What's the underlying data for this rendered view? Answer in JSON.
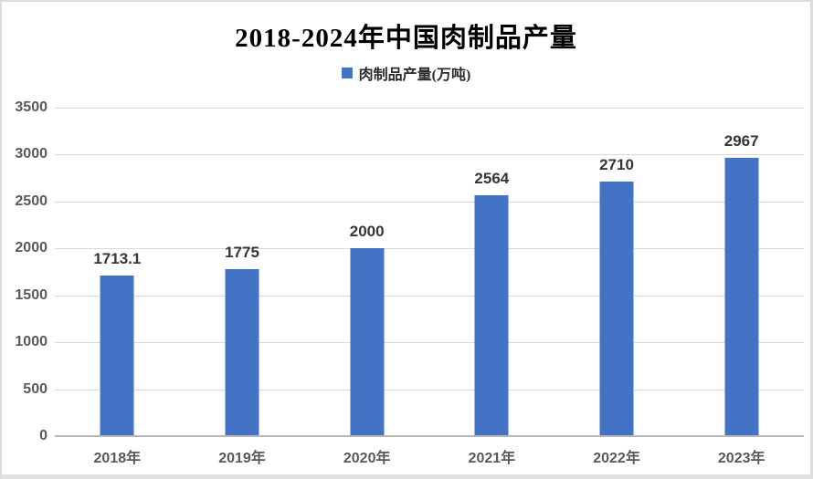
{
  "title": "2018-2024年中国肉制品产量",
  "legend": {
    "label": "肉制品产量(万吨)"
  },
  "colors": {
    "bar": "#4472C4",
    "gridline": "#d9d9d9",
    "axis_line": "#b7b7b7",
    "tick_label": "#595959",
    "data_label": "#363636"
  },
  "chart_data": {
    "type": "bar",
    "title": "2018-2024年中国肉制品产量",
    "legend_entries": [
      "肉制品产量(万吨)"
    ],
    "legend_position": "top",
    "categories": [
      "2018年",
      "2019年",
      "2020年",
      "2021年",
      "2022年",
      "2023年"
    ],
    "values": [
      1713.1,
      1775,
      2000,
      2564,
      2710,
      2967
    ],
    "data_labels": [
      "1713.1",
      "1775",
      "2000",
      "2564",
      "2710",
      "2967"
    ],
    "xlabel": "",
    "ylabel": "",
    "ylim": [
      0,
      3500
    ],
    "yticks": [
      0,
      500,
      1000,
      1500,
      2000,
      2500,
      3000,
      3500
    ],
    "grid": true
  }
}
